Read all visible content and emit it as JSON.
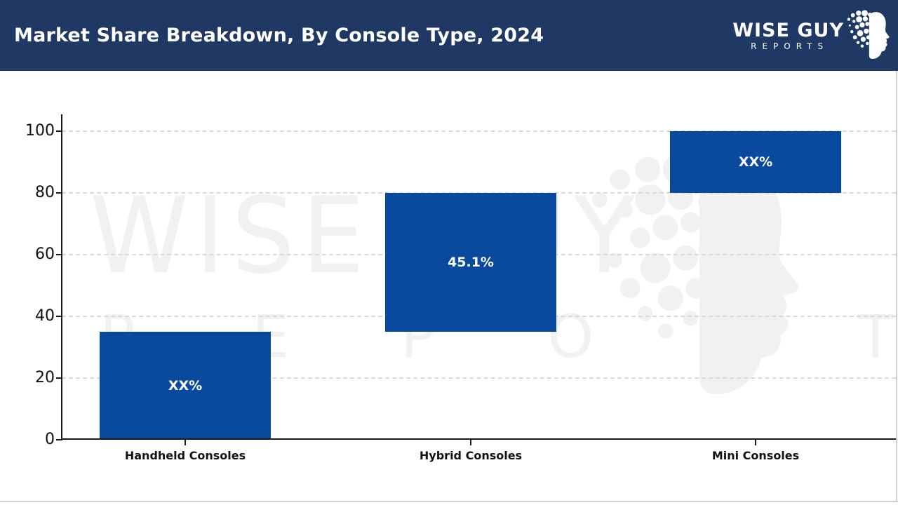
{
  "header": {
    "title": "Market Share Breakdown, By Console Type, 2024",
    "logo": {
      "line1": "WISE GUY",
      "line2": "REPORTS"
    }
  },
  "watermark": {
    "line1": "WISE GUY",
    "line2": "REPORTS",
    "line2_display": "R E P O R T S"
  },
  "colors": {
    "header_bg": "#1f3864",
    "bar": "#0a4a9e",
    "grid": "#d9d9d9",
    "axis": "#1a1a1a",
    "bar_label": "#ffffff",
    "watermark": "#f1f1f4",
    "card_border": "#cfcfcf",
    "title_text": "#ffffff"
  },
  "chart_data": {
    "type": "bar",
    "subtype": "floating-waterfall",
    "title": "Market Share Breakdown, By Console Type, 2024",
    "categories": [
      "Handheld Consoles",
      "Hybrid Consoles",
      "Mini Consoles"
    ],
    "bars": [
      {
        "category": "Handheld Consoles",
        "start": 0,
        "end": 35,
        "label": "XX%"
      },
      {
        "category": "Hybrid Consoles",
        "start": 35,
        "end": 80.1,
        "label": "45.1%"
      },
      {
        "category": "Mini Consoles",
        "start": 80.1,
        "end": 100,
        "label": "XX%"
      }
    ],
    "yticks": [
      0,
      20,
      40,
      60,
      80,
      100
    ],
    "ylim": [
      0,
      105.5
    ],
    "xlabel": "",
    "ylabel": "",
    "grid": "horizontal-dashed",
    "legend": null
  }
}
